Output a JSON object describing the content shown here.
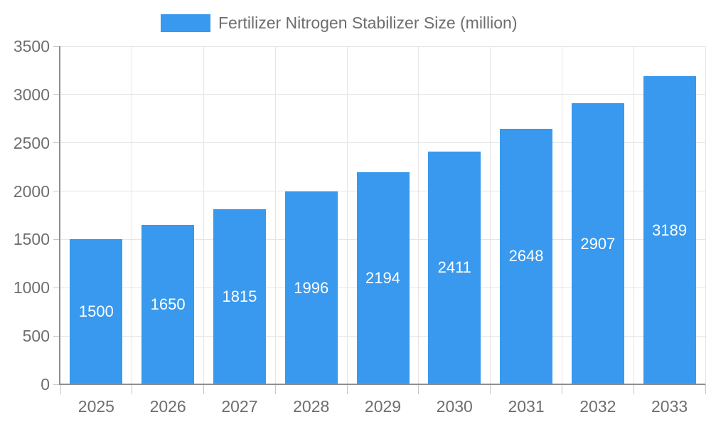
{
  "page": {
    "background": "#ffffff"
  },
  "legend": {
    "label": "Fertilizer Nitrogen Stabilizer Size (million)",
    "swatch_color": "#3899EE"
  },
  "chart_data": {
    "type": "bar",
    "title": "Fertilizer Nitrogen Stabilizer Size (million)",
    "series_name": "Fertilizer Nitrogen Stabilizer Size (million)",
    "categories": [
      "2025",
      "2026",
      "2027",
      "2028",
      "2029",
      "2030",
      "2031",
      "2032",
      "2033"
    ],
    "values": [
      1500,
      1650,
      1815,
      1996,
      2194,
      2411,
      2648,
      2907,
      3189
    ],
    "value_labels": [
      "1500",
      "1650",
      "1815",
      "1996",
      "2194",
      "2411",
      "2648",
      "2907",
      "3189"
    ],
    "xlabel": "",
    "ylabel": "",
    "ylim": [
      0,
      3500
    ],
    "ytick_step": 500,
    "y_tick_labels": [
      "0",
      "500",
      "1000",
      "1500",
      "2000",
      "2500",
      "3000",
      "3500"
    ],
    "grid": true,
    "legend_position": "top-center",
    "bar_color": "#3899EE",
    "value_label_color": "#FFFFFF",
    "grid_color": "#E5E5E5",
    "axis_color": "#8F8F8F",
    "tick_color": "#C6C6C6",
    "label_color": "#6E6E6E"
  }
}
